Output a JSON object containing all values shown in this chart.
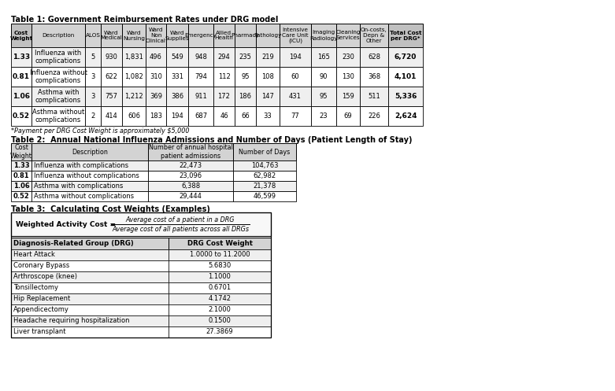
{
  "title1": "Table 1: Government Reimbursement Rates under DRG model",
  "title2": "Table 2:  Annual National Influenza Admissions and Number of Days (Patient Length of Stay)",
  "title3": "Table 3:  Calculating Cost Weights (Examples)",
  "footnote1": "*Payment per DRG Cost Weight is approximately $5,000",
  "table1_headers": [
    "Cost\nWeight",
    "Description",
    "ALOS",
    "Ward\nMedical",
    "Ward\nNursing",
    "Ward\nNon\nClinical",
    "Ward\nSupplies",
    "Emergency",
    "Allied\nHealth",
    "Pharmacy",
    "Pathology",
    "Intensive\nCare Unit\n(ICU)",
    "Imaging\nRadiology",
    "Cleaning\nServices",
    "On-costs,\nDepn &\nOther",
    "Total Cost\nper DRG*"
  ],
  "table1_data": [
    [
      "1.33",
      "Influenza with\ncomplications",
      "5",
      "930",
      "1,831",
      "496",
      "549",
      "948",
      "294",
      "235",
      "219",
      "194",
      "165",
      "230",
      "628",
      "6,720"
    ],
    [
      "0.81",
      "Influenza without\ncomplications",
      "3",
      "622",
      "1,082",
      "310",
      "331",
      "794",
      "112",
      "95",
      "108",
      "60",
      "90",
      "130",
      "368",
      "4,101"
    ],
    [
      "1.06",
      "Asthma with\ncomplications",
      "3",
      "757",
      "1,212",
      "369",
      "386",
      "911",
      "172",
      "186",
      "147",
      "431",
      "95",
      "159",
      "511",
      "5,336"
    ],
    [
      "0.52",
      "Asthma without\ncomplications",
      "2",
      "414",
      "606",
      "183",
      "194",
      "687",
      "46",
      "66",
      "33",
      "77",
      "23",
      "69",
      "226",
      "2,624"
    ]
  ],
  "table2_headers_col1": "Cost\nWeight",
  "table2_headers_col2": "Description",
  "table2_headers_col3": "Number of annual hospital\npatient admissions",
  "table2_headers_col4": "Number of Days",
  "table2_data": [
    [
      "1.33",
      "Influenza with complications",
      "22,473",
      "104,763"
    ],
    [
      "0.81",
      "Influenza without complications",
      "23,096",
      "62,982"
    ],
    [
      "1.06",
      "Asthma with complications",
      "6,388",
      "21,378"
    ],
    [
      "0.52",
      "Asthma without complications",
      "29,444",
      "46,599"
    ]
  ],
  "table3_drg": [
    "Heart Attack",
    "Coronary Bypass",
    "Arthroscope (knee)",
    "Tonsillectomy",
    "Hip Replacement",
    "Appendicectomy",
    "Headache requiring hospitalization",
    "Liver transplant"
  ],
  "table3_weight": [
    "1.0000 to 11.2000",
    "5.6830",
    "1.1000",
    "0.6701",
    "4.1742",
    "2.1000",
    "0.1500",
    "27.3869"
  ],
  "header_bg": "#d3d3d3",
  "row_bg_alt": "#efefef",
  "row_bg": "#ffffff",
  "formula_italic": "Average cost of a patient in a DRG",
  "formula_italic2": "Average cost of all patients across all DRGs",
  "formula_left": "Weighted Activity Cost = "
}
